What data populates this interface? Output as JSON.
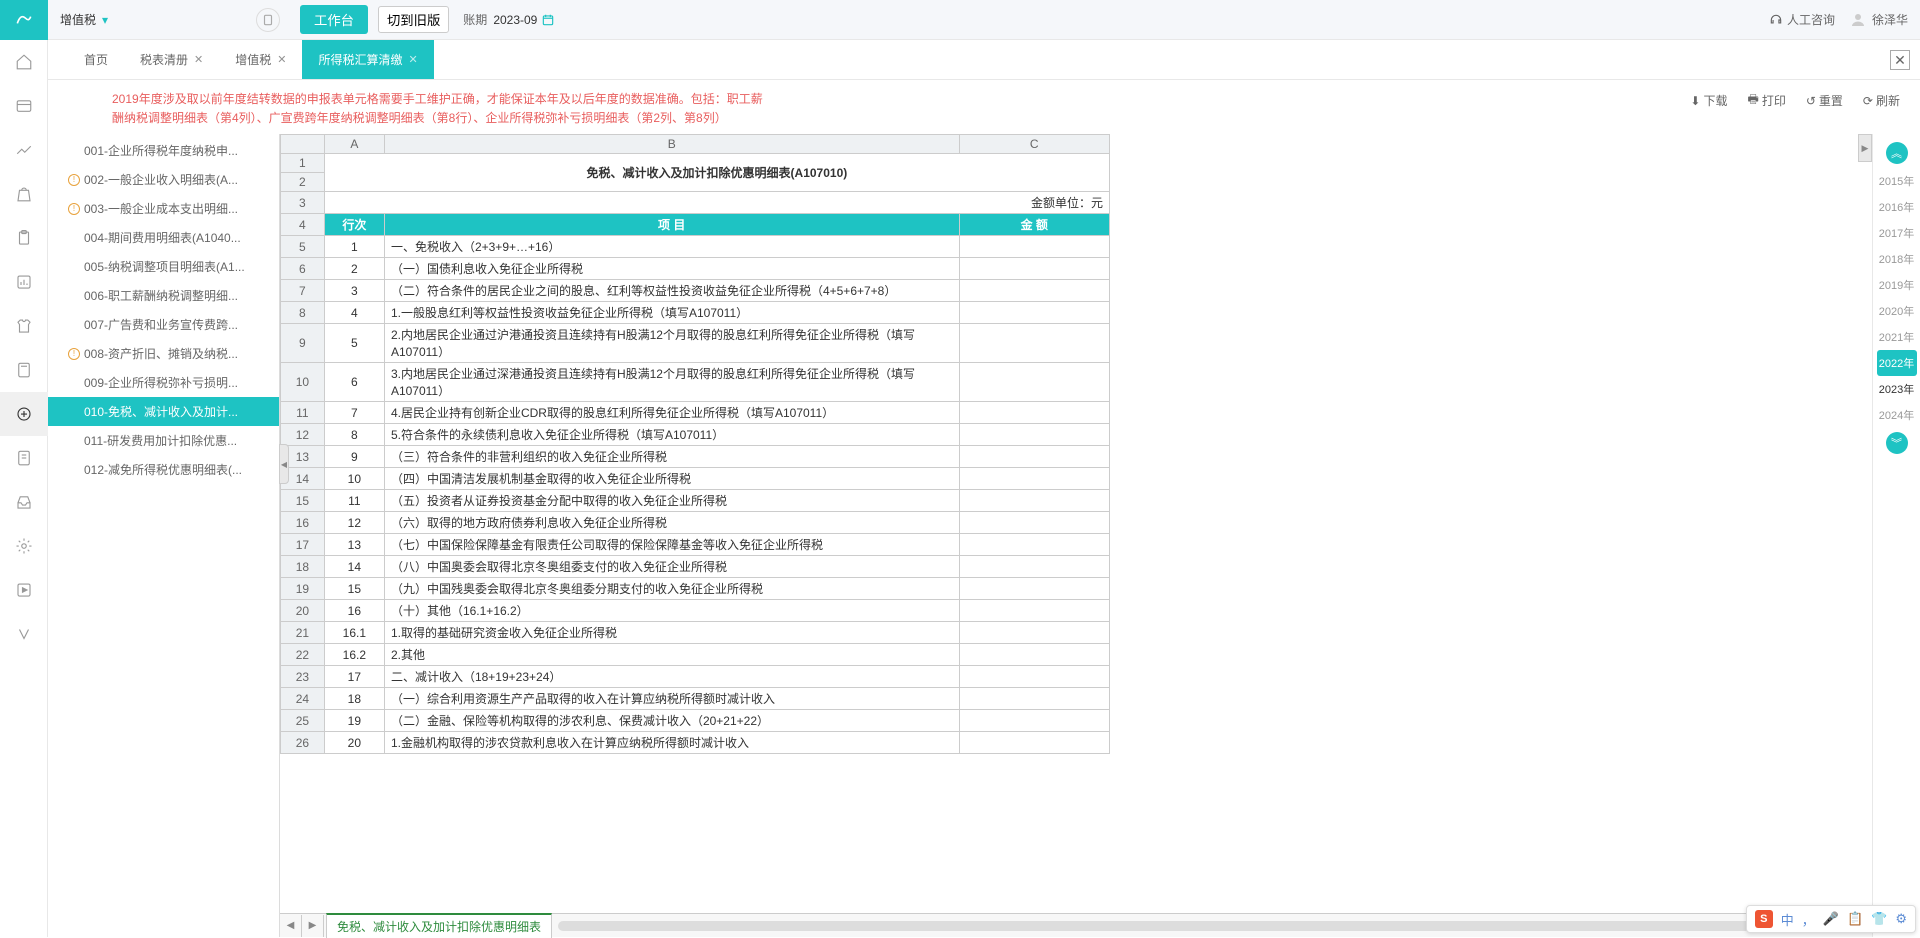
{
  "header": {
    "selector_label": "增值税",
    "workbench_btn": "工作台",
    "switch_old": "切到旧版",
    "period_label": "账期",
    "period_value": "2023-09",
    "help_label": "人工咨询",
    "user_name": "徐泽华"
  },
  "tabs": [
    {
      "label": "首页",
      "closable": false,
      "active": false
    },
    {
      "label": "税表清册",
      "closable": true,
      "active": false
    },
    {
      "label": "增值税",
      "closable": true,
      "active": false
    },
    {
      "label": "所得税汇算清缴",
      "closable": true,
      "active": true
    }
  ],
  "notice": "2019年度涉及取以前年度结转数据的申报表单元格需要手工维护正确，才能保证本年及以后年度的数据准确。包括：职工薪酬纳税调整明细表（第4列）、广宣费跨年度纳税调整明细表（第8行）、企业所得税弥补亏损明细表（第2列、第8列）",
  "toolbar": {
    "download": "下载",
    "print": "打印",
    "reset": "重置",
    "refresh": "刷新"
  },
  "form_list": [
    {
      "label": "001-企业所得税年度纳税申...",
      "warn": false
    },
    {
      "label": "002-一般企业收入明细表(A...",
      "warn": true
    },
    {
      "label": "003-一般企业成本支出明细...",
      "warn": true
    },
    {
      "label": "004-期间费用明细表(A1040...",
      "warn": false
    },
    {
      "label": "005-纳税调整项目明细表(A1...",
      "warn": false
    },
    {
      "label": "006-职工薪酬纳税调整明细...",
      "warn": false
    },
    {
      "label": "007-广告费和业务宣传费跨...",
      "warn": false
    },
    {
      "label": "008-资产折旧、摊销及纳税...",
      "warn": true
    },
    {
      "label": "009-企业所得税弥补亏损明...",
      "warn": false
    },
    {
      "label": "010-免税、减计收入及加计...",
      "warn": false,
      "active": true
    },
    {
      "label": "011-研发费用加计扣除优惠...",
      "warn": false
    },
    {
      "label": "012-减免所得税优惠明细表(...",
      "warn": false
    }
  ],
  "spreadsheet": {
    "col_letters": [
      "A",
      "B",
      "C"
    ],
    "title": "免税、减计收入及加计扣除优惠明细表(A107010)",
    "unit": "金额单位：元",
    "header_row": {
      "rn": "行次",
      "proj": "项        目",
      "amt": "金        额"
    },
    "rows": [
      {
        "n": 5,
        "rn": "1",
        "proj": "一、免税收入（2+3+9+…+16）"
      },
      {
        "n": 6,
        "rn": "2",
        "proj": "（一）国债利息收入免征企业所得税"
      },
      {
        "n": 7,
        "rn": "3",
        "proj": "（二）符合条件的居民企业之间的股息、红利等权益性投资收益免征企业所得税（4+5+6+7+8）"
      },
      {
        "n": 8,
        "rn": "4",
        "proj": "1.一般股息红利等权益性投资收益免征企业所得税（填写A107011）"
      },
      {
        "n": 9,
        "rn": "5",
        "proj": "2.内地居民企业通过沪港通投资且连续持有H股满12个月取得的股息红利所得免征企业所得税（填写A107011）"
      },
      {
        "n": 10,
        "rn": "6",
        "proj": "3.内地居民企业通过深港通投资且连续持有H股满12个月取得的股息红利所得免征企业所得税（填写A107011）"
      },
      {
        "n": 11,
        "rn": "7",
        "proj": "4.居民企业持有创新企业CDR取得的股息红利所得免征企业所得税（填写A107011）"
      },
      {
        "n": 12,
        "rn": "8",
        "proj": "5.符合条件的永续债利息收入免征企业所得税（填写A107011）"
      },
      {
        "n": 13,
        "rn": "9",
        "proj": "（三）符合条件的非营利组织的收入免征企业所得税"
      },
      {
        "n": 14,
        "rn": "10",
        "proj": "（四）中国清洁发展机制基金取得的收入免征企业所得税"
      },
      {
        "n": 15,
        "rn": "11",
        "proj": "（五）投资者从证券投资基金分配中取得的收入免征企业所得税"
      },
      {
        "n": 16,
        "rn": "12",
        "proj": "（六）取得的地方政府债券利息收入免征企业所得税"
      },
      {
        "n": 17,
        "rn": "13",
        "proj": "（七）中国保险保障基金有限责任公司取得的保险保障基金等收入免征企业所得税"
      },
      {
        "n": 18,
        "rn": "14",
        "proj": "（八）中国奥委会取得北京冬奥组委支付的收入免征企业所得税"
      },
      {
        "n": 19,
        "rn": "15",
        "proj": "（九）中国残奥委会取得北京冬奥组委分期支付的收入免征企业所得税"
      },
      {
        "n": 20,
        "rn": "16",
        "proj": "（十）其他（16.1+16.2）"
      },
      {
        "n": 21,
        "rn": "16.1",
        "proj": "1.取得的基础研究资金收入免征企业所得税"
      },
      {
        "n": 22,
        "rn": "16.2",
        "proj": "2.其他"
      },
      {
        "n": 23,
        "rn": "17",
        "proj": "二、减计收入（18+19+23+24）"
      },
      {
        "n": 24,
        "rn": "18",
        "proj": "（一）综合利用资源生产产品取得的收入在计算应纳税所得额时减计收入"
      },
      {
        "n": 25,
        "rn": "19",
        "proj": "（二）金融、保险等机构取得的涉农利息、保费减计收入（20+21+22）"
      },
      {
        "n": 26,
        "rn": "20",
        "proj": "1.金融机构取得的涉农贷款利息收入在计算应纳税所得额时减计收入"
      }
    ],
    "sheet_tab": "免税、减计收入及加计扣除优惠明细表"
  },
  "years": [
    "2015年",
    "2016年",
    "2017年",
    "2018年",
    "2019年",
    "2020年",
    "2021年",
    "2022年",
    "2023年",
    "2024年"
  ],
  "year_current": "2022年",
  "year_dark": "2023年",
  "ime": {
    "logo": "S",
    "items": [
      "中",
      "，",
      "🎤",
      "📋",
      "👕",
      "⚙"
    ]
  },
  "colors": {
    "primary": "#1ec3c3",
    "warn": "#e8a23c",
    "notice": "#e85d5d",
    "sheet_tab_green": "#2e8b3d"
  }
}
